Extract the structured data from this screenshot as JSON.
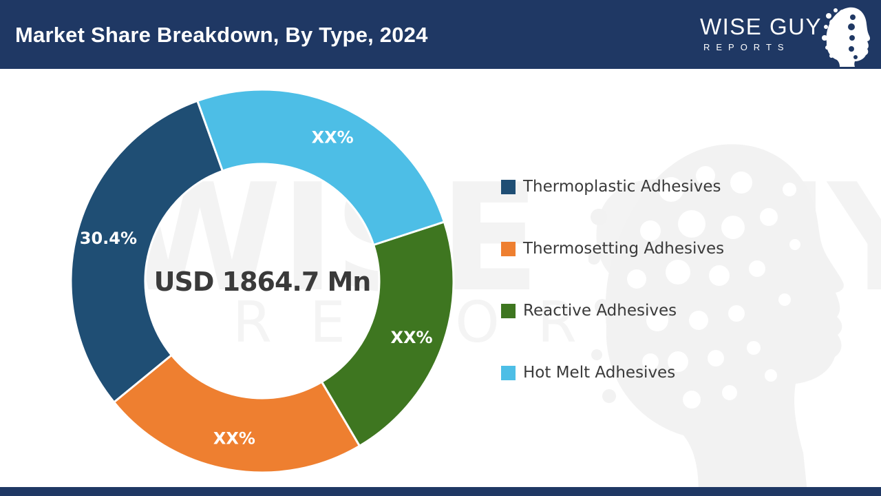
{
  "header": {
    "title": "Market Share Breakdown, By Type, 2024",
    "logo": {
      "line1": "WISE GUY",
      "line2": "REPORTS"
    }
  },
  "watermark": {
    "line1": "WISE GUY",
    "line2": "REPORTS"
  },
  "chart_data": {
    "type": "pie",
    "title": "Market Share Breakdown, By Type, 2024",
    "donut": true,
    "center_label": "USD 1864.7 Mn",
    "start_angle_deg": 340.2,
    "direction": "counterclockwise",
    "legend_position": "right",
    "segments": [
      {
        "label": "Thermoplastic Adhesives",
        "display_label": "30.4%",
        "value_pct": 30.4,
        "color": "#1f4e74"
      },
      {
        "label": "Thermosetting Adhesives",
        "display_label": "XX%",
        "value_pct": 22.6,
        "color": "#ee7f30"
      },
      {
        "label": "Reactive Adhesives",
        "display_label": "XX%",
        "value_pct": 21.5,
        "color": "#3e7620"
      },
      {
        "label": "Hot Melt Adhesives",
        "display_label": "XX%",
        "value_pct": 25.5,
        "color": "#4dbee6"
      }
    ],
    "colors": {
      "header_bar": "#1f3864",
      "center_text": "#3a3a3a",
      "slice_label_text": "#ffffff",
      "watermark": "#f3f3f3"
    }
  }
}
